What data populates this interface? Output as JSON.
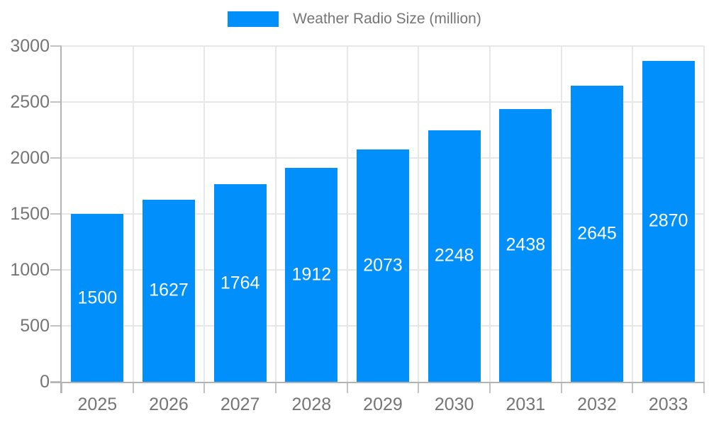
{
  "chart_data": {
    "type": "bar",
    "title": "Weather Radio Size (million)",
    "legend": {
      "label": "Weather Radio Size (million)",
      "position": "top"
    },
    "categories": [
      "2025",
      "2026",
      "2027",
      "2028",
      "2029",
      "2030",
      "2031",
      "2032",
      "2033"
    ],
    "series": [
      {
        "name": "Weather Radio Size (million)",
        "values": [
          1500,
          1627,
          1764,
          1912,
          2073,
          2248,
          2438,
          2645,
          2870
        ]
      }
    ],
    "xlabel": "",
    "ylabel": "",
    "ylim": [
      0,
      3000
    ],
    "yticks": [
      0,
      500,
      1000,
      1500,
      2000,
      2500,
      3000
    ],
    "grid": true,
    "value_labels_shown": true,
    "colors": {
      "bar": "#008FFB",
      "value_label": "#FFFFFF",
      "axis_text": "#757575",
      "grid_line": "#E7E7E7",
      "axis_line": "#B3B3B3",
      "tick_mark": "#C2C2C2",
      "background": "#FFFFFF"
    }
  }
}
